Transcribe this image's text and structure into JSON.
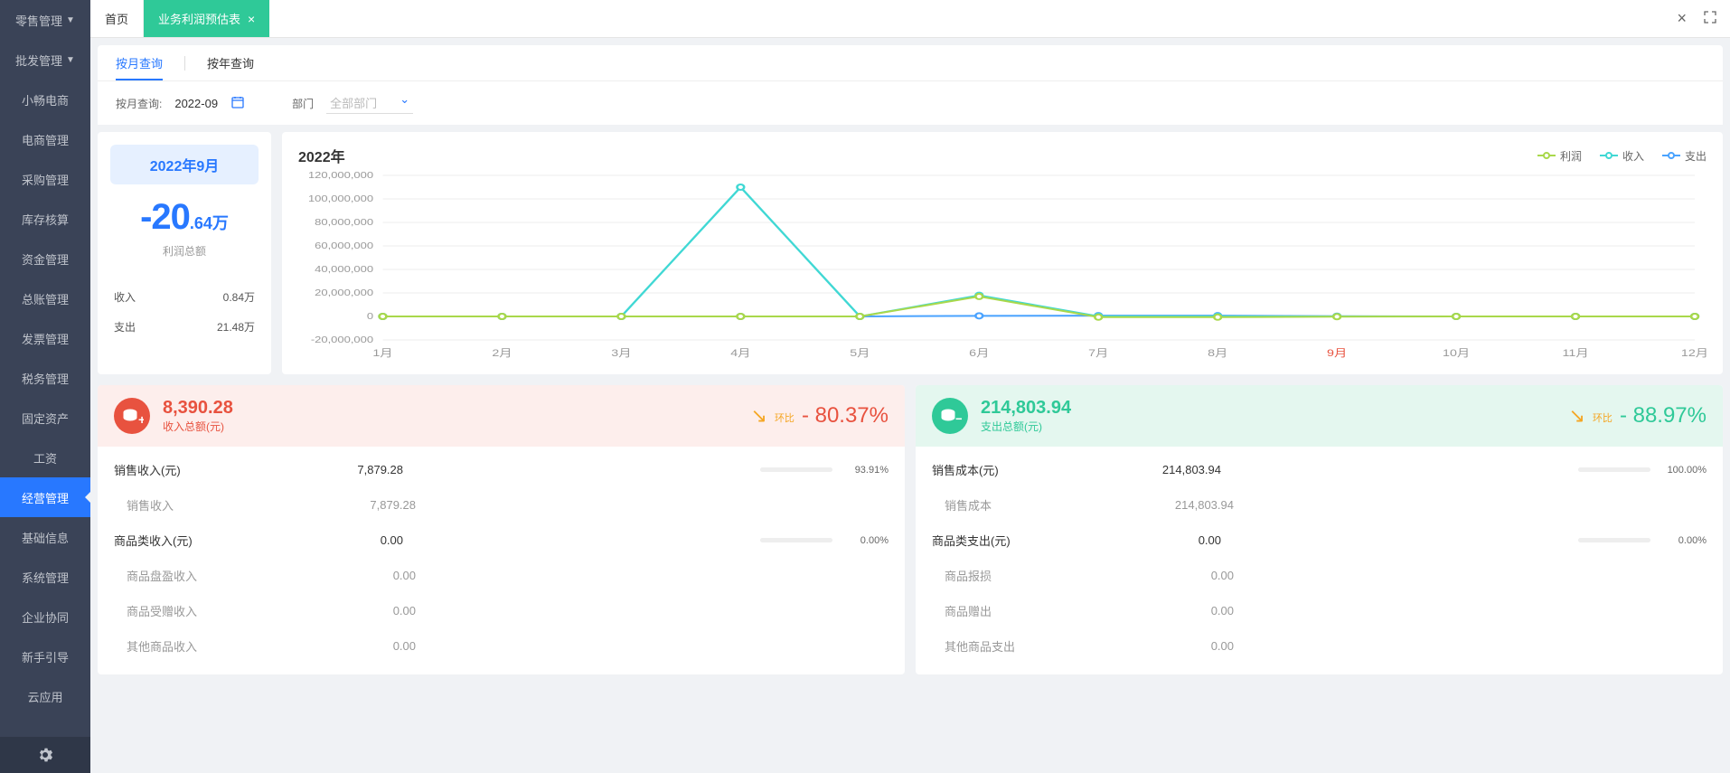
{
  "sidebar": {
    "items": [
      {
        "label": "零售管理",
        "hasCaret": true
      },
      {
        "label": "批发管理",
        "hasCaret": true
      },
      {
        "label": "小畅电商"
      },
      {
        "label": "电商管理"
      },
      {
        "label": "采购管理"
      },
      {
        "label": "库存核算"
      },
      {
        "label": "资金管理"
      },
      {
        "label": "总账管理"
      },
      {
        "label": "发票管理"
      },
      {
        "label": "税务管理"
      },
      {
        "label": "固定资产"
      },
      {
        "label": "工资"
      },
      {
        "label": "经营管理",
        "active": true
      },
      {
        "label": "基础信息"
      },
      {
        "label": "系统管理"
      },
      {
        "label": "企业协同"
      },
      {
        "label": "新手引导"
      },
      {
        "label": "云应用"
      }
    ]
  },
  "tabs": {
    "home": "首页",
    "active": "业务利润预估表"
  },
  "subtabs": {
    "byMonth": "按月查询",
    "byYear": "按年查询"
  },
  "filter": {
    "byMonthLabel": "按月查询:",
    "monthValue": "2022-09",
    "deptLabel": "部门",
    "deptPlaceholder": "全部部门"
  },
  "leftCard": {
    "monthPill": "2022年9月",
    "profitBig": "-20",
    "profitSmall": ".64万",
    "profitLabel": "利润总额",
    "rows": [
      {
        "label": "收入",
        "value": "0.84万"
      },
      {
        "label": "支出",
        "value": "21.48万"
      }
    ]
  },
  "chart": {
    "title": "2022年",
    "legend": {
      "profit": "利润",
      "income": "收入",
      "expense": "支出"
    },
    "colors": {
      "profit": "#a9d84b",
      "income": "#40d8d4",
      "expense": "#4aa3ff",
      "grid": "#eeeeee",
      "axisText": "#999999",
      "highlightMonth": "#e8523f"
    },
    "yAxis": {
      "min": -20000000,
      "max": 120000000,
      "step": 20000000,
      "labels": [
        "-20,000,000",
        "0",
        "20,000,000",
        "40,000,000",
        "60,000,000",
        "80,000,000",
        "100,000,000",
        "120,000,000"
      ]
    },
    "xLabels": [
      "1月",
      "2月",
      "3月",
      "4月",
      "5月",
      "6月",
      "7月",
      "8月",
      "9月",
      "10月",
      "11月",
      "12月"
    ],
    "highlightIndex": 8,
    "series": {
      "profit": [
        0,
        0,
        0,
        0,
        0,
        17000000,
        -600000,
        -600000,
        -200000,
        0,
        0,
        0
      ],
      "income": [
        0,
        0,
        0,
        110000000,
        0,
        18000000,
        100000,
        50000,
        8000,
        0,
        0,
        0
      ],
      "expense": [
        0,
        0,
        0,
        0,
        0,
        500000,
        700000,
        650000,
        210000,
        0,
        0,
        0
      ]
    }
  },
  "panels": {
    "income": {
      "amount": "8,390.28",
      "subtitle": "收入总额(元)",
      "trendLabel": "环比",
      "trendPct": "- 80.37%",
      "rows": [
        {
          "label": "销售收入(元)",
          "value": "7,879.28",
          "pct": "93.91%",
          "barPct": 93.91,
          "bold": true
        },
        {
          "label": "销售收入",
          "value": "7,879.28",
          "sub": true
        },
        {
          "label": "商品类收入(元)",
          "value": "0.00",
          "pct": "0.00%",
          "barPct": 0,
          "bold": true
        },
        {
          "label": "商品盘盈收入",
          "value": "0.00",
          "sub": true
        },
        {
          "label": "商品受赠收入",
          "value": "0.00",
          "sub": true
        },
        {
          "label": "其他商品收入",
          "value": "0.00",
          "sub": true
        }
      ]
    },
    "expense": {
      "amount": "214,803.94",
      "subtitle": "支出总额(元)",
      "trendLabel": "环比",
      "trendPct": "- 88.97%",
      "rows": [
        {
          "label": "销售成本(元)",
          "value": "214,803.94",
          "pct": "100.00%",
          "barPct": 100,
          "bold": true
        },
        {
          "label": "销售成本",
          "value": "214,803.94",
          "sub": true
        },
        {
          "label": "商品类支出(元)",
          "value": "0.00",
          "pct": "0.00%",
          "barPct": 0,
          "bold": true
        },
        {
          "label": "商品报损",
          "value": "0.00",
          "sub": true
        },
        {
          "label": "商品赠出",
          "value": "0.00",
          "sub": true
        },
        {
          "label": "其他商品支出",
          "value": "0.00",
          "sub": true
        }
      ]
    }
  }
}
